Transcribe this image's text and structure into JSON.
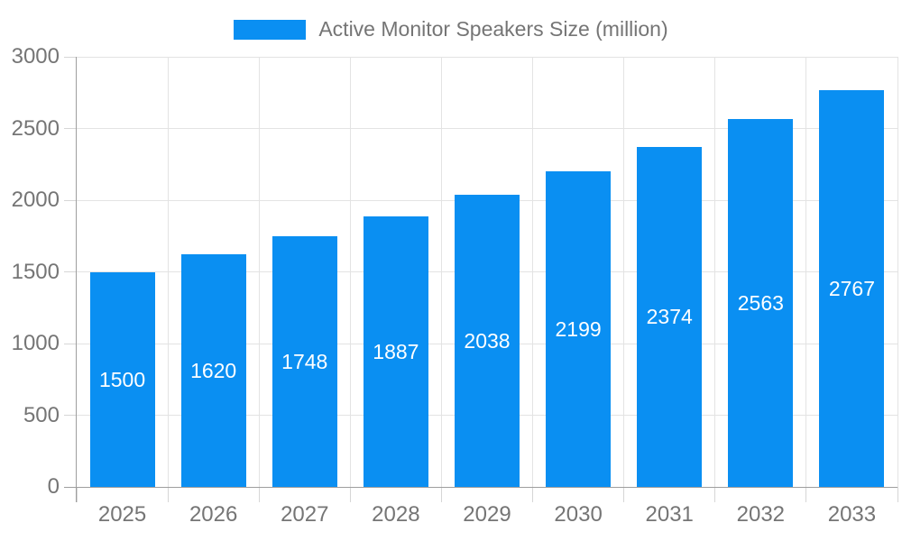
{
  "legend": {
    "label": "Active Monitor Speakers Size (million)"
  },
  "chart_data": {
    "type": "bar",
    "title": "Active Monitor Speakers Size (million)",
    "series_name": "Active Monitor Speakers Size (million)",
    "categories": [
      "2025",
      "2026",
      "2027",
      "2028",
      "2029",
      "2030",
      "2031",
      "2032",
      "2033"
    ],
    "values": [
      1500,
      1620,
      1748,
      1887,
      2038,
      2199,
      2374,
      2563,
      2767
    ],
    "value_labels_shown": true,
    "xlabel": "",
    "ylabel": "",
    "ylim": [
      0,
      3000
    ],
    "ytick_step": 500,
    "yticks": [
      0,
      500,
      1000,
      1500,
      2000,
      2500,
      3000
    ],
    "grid": true,
    "legend_position": "top",
    "colors": {
      "bar": "#0a8ff2",
      "value_label": "#ffffff",
      "grid": "#e3e3e3",
      "tick": "#d6d6d6",
      "axis": "#9e9e9e",
      "tick_label": "#757575",
      "background": "#ffffff"
    }
  }
}
